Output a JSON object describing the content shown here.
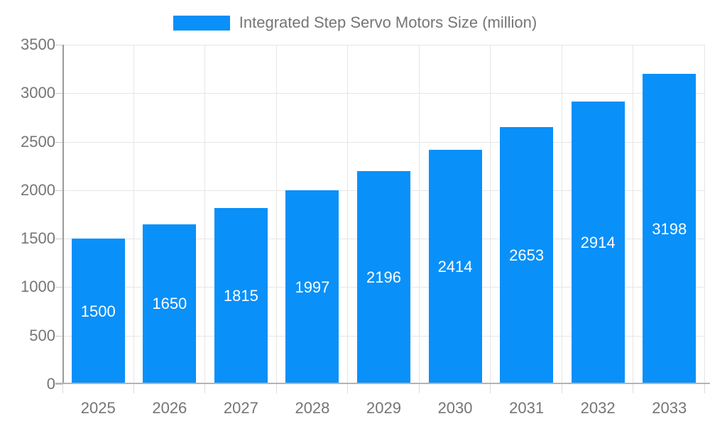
{
  "chart_data": {
    "type": "bar",
    "title": "Integrated Step Servo Motors Size (million)",
    "categories": [
      "2025",
      "2026",
      "2027",
      "2028",
      "2029",
      "2030",
      "2031",
      "2032",
      "2033"
    ],
    "values": [
      1500,
      1650,
      1815,
      1997,
      2196,
      2414,
      2653,
      2914,
      3198
    ],
    "xlabel": "",
    "ylabel": "",
    "ylim": [
      0,
      3500
    ],
    "yticks": [
      0,
      500,
      1000,
      1500,
      2000,
      2500,
      3000,
      3500
    ],
    "grid": true,
    "legend_position": "top-center",
    "bar_color": "#0990f9",
    "value_label_color": "#ffffff",
    "axis_text_color": "#757575",
    "gridline_color": "#e6e6e6"
  }
}
